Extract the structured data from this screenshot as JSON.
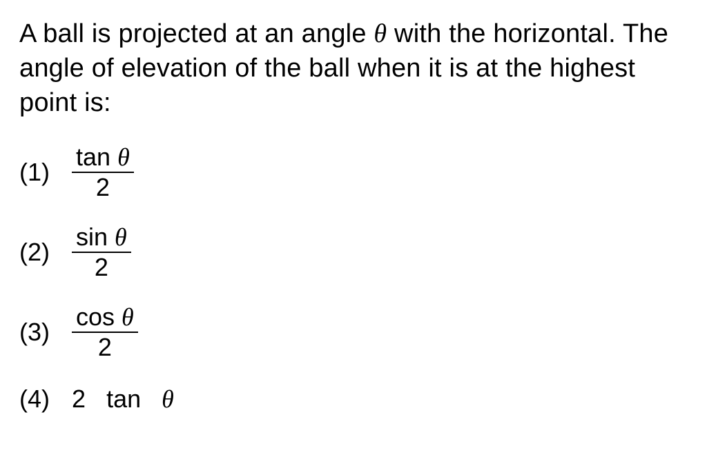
{
  "question": {
    "prefix": "A ball is projected at an angle ",
    "theta": "θ",
    "middle": " with the horizontal. The angle of elevation of the ball when it is at the highest point is:",
    "fontsize_pt": 28,
    "text_color": "#000000"
  },
  "options": [
    {
      "label": "(1)",
      "type": "fraction",
      "numerator_func": "tan",
      "numerator_arg": "θ",
      "denominator": "2"
    },
    {
      "label": "(2)",
      "type": "fraction",
      "numerator_func": "sin",
      "numerator_arg": "θ",
      "denominator": "2"
    },
    {
      "label": "(3)",
      "type": "fraction",
      "numerator_func": "cos",
      "numerator_arg": "θ",
      "denominator": "2"
    },
    {
      "label": "(4)",
      "type": "plain",
      "coeff": "2",
      "func": "tan",
      "arg": "θ"
    }
  ],
  "style": {
    "background_color": "#ffffff",
    "text_color": "#000000",
    "option_fontsize_pt": 27,
    "fraction_bar_color": "#000000"
  }
}
